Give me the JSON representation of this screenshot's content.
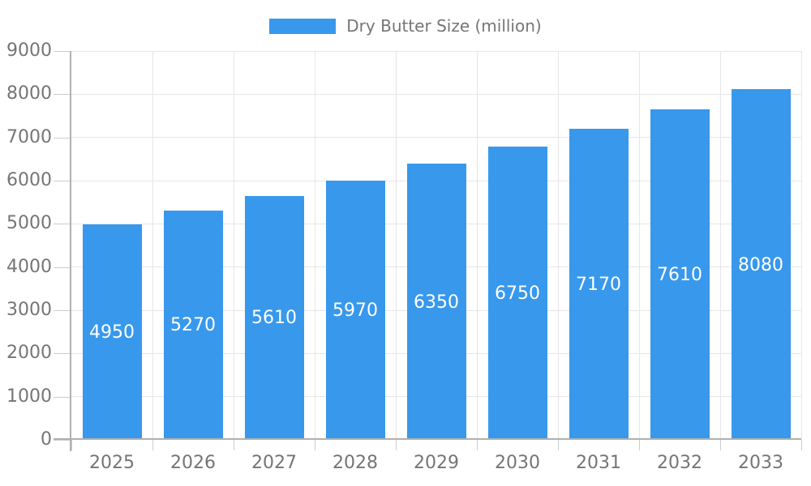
{
  "legend": {
    "label": "Dry Butter Size (million)"
  },
  "chart_data": {
    "type": "bar",
    "title": "Dry Butter Size (million)",
    "legend_position": "top",
    "categories": [
      "2025",
      "2026",
      "2027",
      "2028",
      "2029",
      "2030",
      "2031",
      "2032",
      "2033"
    ],
    "series": [
      {
        "name": "Dry Butter Size (million)",
        "values": [
          4950,
          5270,
          5610,
          5970,
          6350,
          6750,
          7170,
          7610,
          8080
        ]
      }
    ],
    "value_labels": [
      4950,
      5270,
      5610,
      5970,
      6350,
      6750,
      7170,
      7610,
      8080
    ],
    "xlabel": "",
    "ylabel": "",
    "ylim": [
      0,
      9000
    ],
    "ytick_step": 1000,
    "yticks": [
      0,
      1000,
      2000,
      3000,
      4000,
      5000,
      6000,
      7000,
      8000,
      9000
    ],
    "grid": true,
    "colors": {
      "bar": "#3898EC",
      "value_label_text": "#FFFFFF",
      "axis_label_text": "#757575",
      "legend_text": "#757575",
      "gridline": "#E6E6E6",
      "axis_line": "#B0B0B0",
      "tick": "#CCCCCC",
      "background": "#FFFFFF"
    }
  }
}
